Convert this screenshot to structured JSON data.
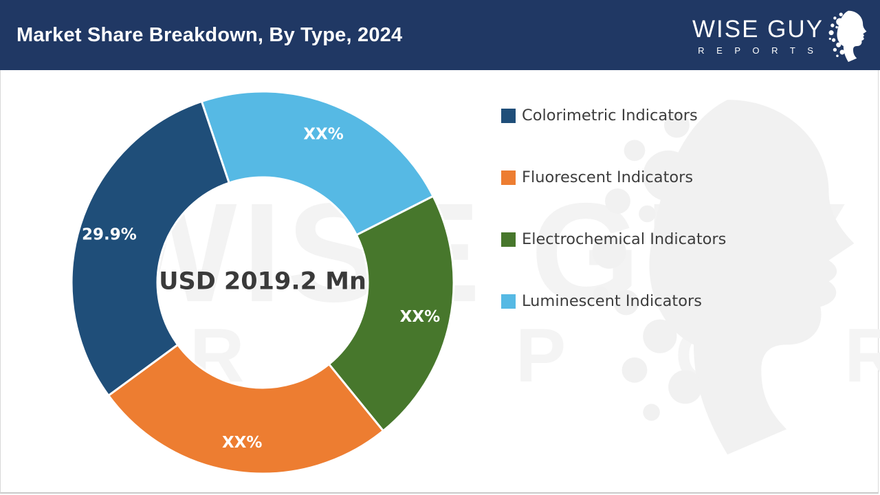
{
  "header": {
    "title": "Market Share Breakdown, By Type, 2024",
    "bg_color": "#203864",
    "logo": {
      "brand_line1": "WISE GUY",
      "brand_line2": "R E P O R T S"
    }
  },
  "watermark": {
    "line1": "WISE GUY",
    "line2": "R E P O R T S"
  },
  "chart_data": {
    "type": "pie",
    "donut": true,
    "title": "Market Share Breakdown, By Type, 2024",
    "center_text": "USD 2019.2 Mn",
    "legend_position": "right",
    "start_angle_deg_clockwise_from_12": -18.6,
    "segments": [
      {
        "name": "Luminescent Indicators",
        "display_label": "XX%",
        "pct": 22.7,
        "pct_estimated_from_arc": true,
        "color": "#56b9e4"
      },
      {
        "name": "Electrochemical Indicators",
        "display_label": "XX%",
        "pct": 21.6,
        "pct_estimated_from_arc": true,
        "color": "#47772c"
      },
      {
        "name": "Fluorescent Indicators",
        "display_label": "XX%",
        "pct": 25.8,
        "pct_estimated_from_arc": true,
        "color": "#ed7d31"
      },
      {
        "name": "Colorimetric Indicators",
        "display_label": "29.9%",
        "pct": 29.9,
        "pct_estimated_from_arc": false,
        "color": "#1f4e79"
      }
    ]
  },
  "legend": {
    "items": [
      {
        "label": "Colorimetric Indicators",
        "color": "#1f4e79"
      },
      {
        "label": "Fluorescent Indicators",
        "color": "#ed7d31"
      },
      {
        "label": "Electrochemical Indicators",
        "color": "#47772c"
      },
      {
        "label": "Luminescent Indicators",
        "color": "#56b9e4"
      }
    ]
  }
}
